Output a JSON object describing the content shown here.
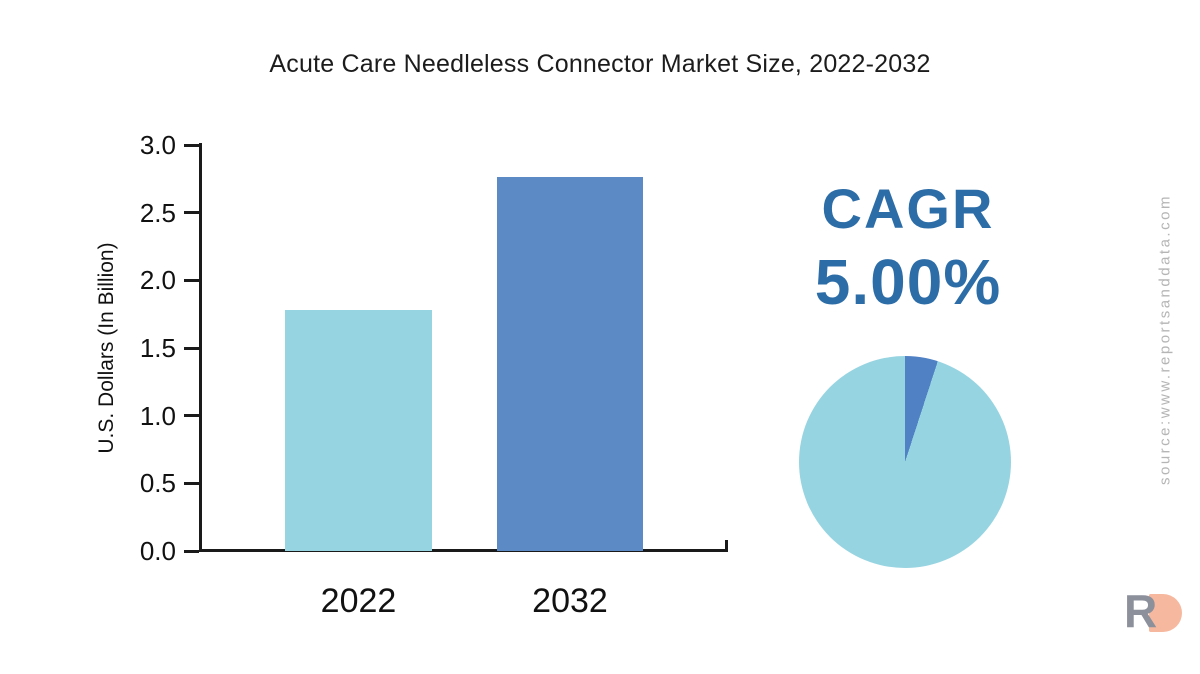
{
  "title": "Acute Care Needleless Connector Market Size, 2022-2032",
  "cagr": {
    "label": "CAGR",
    "value": "5.00%"
  },
  "source_note": "source:www.reportsanddata.com",
  "logo": {
    "letter_r": "R"
  },
  "colors": {
    "axis": "#1a1a1a",
    "title_text": "#1c1c1c",
    "cagr_text": "#2d6da7",
    "source_text": "#b5b5b5",
    "logo_r": "#8b909a",
    "logo_d": "#f6b89e"
  },
  "chart_data": [
    {
      "type": "bar",
      "title": "Acute Care Needleless Connector Market Size, 2022-2032",
      "categories": [
        "2022",
        "2032"
      ],
      "values": [
        1.78,
        2.76
      ],
      "xlabel": "",
      "ylabel": "U.S. Dollars (In Billion)",
      "ylim": [
        0,
        3.0
      ],
      "yticks": [
        "0.0",
        "0.5",
        "1.0",
        "1.5",
        "2.0",
        "2.5",
        "3.0"
      ],
      "grid": false,
      "legend": false,
      "bar_colors": [
        "#97d4e1",
        "#5b8ac5"
      ]
    },
    {
      "type": "pie",
      "series": [
        {
          "name": "cagr-slice",
          "value": 5,
          "color": "#4f81c4"
        },
        {
          "name": "remainder-slice",
          "value": 95,
          "color": "#97d4e1"
        }
      ],
      "start_angle_deg": 0,
      "legend": false
    }
  ]
}
